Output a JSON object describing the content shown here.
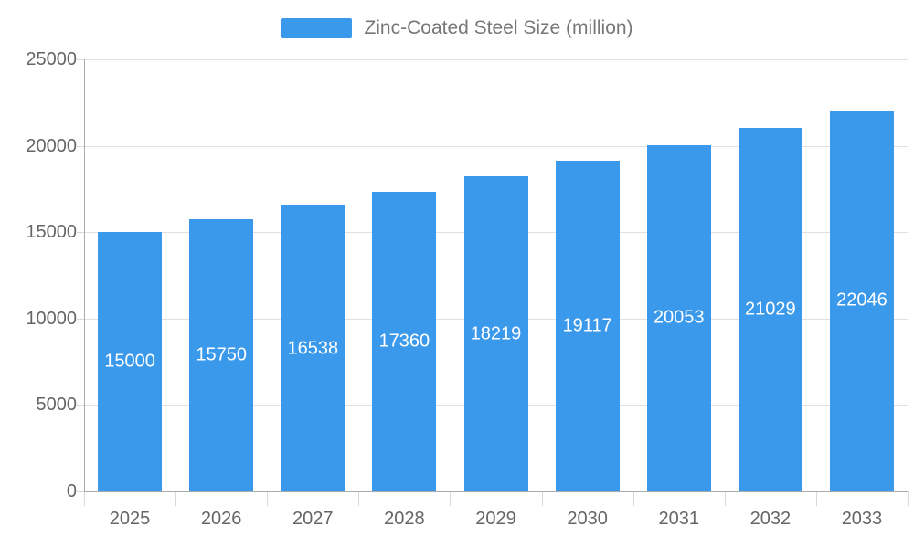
{
  "legend": {
    "label": "Zinc-Coated Steel Size (million)"
  },
  "chart_data": {
    "type": "bar",
    "title": "",
    "categories": [
      "2025",
      "2026",
      "2027",
      "2028",
      "2029",
      "2030",
      "2031",
      "2032",
      "2033"
    ],
    "series": [
      {
        "name": "Zinc-Coated Steel Size (million)",
        "values": [
          15000,
          15750,
          16538,
          17360,
          18219,
          19117,
          20053,
          21029,
          22046
        ]
      }
    ],
    "bar_value_labels": [
      "15000",
      "15750",
      "16538",
      "17360",
      "18219",
      "19117",
      "20053",
      "21029",
      "22046"
    ],
    "xlabel": "",
    "ylabel": "",
    "ylim": [
      0,
      25000
    ],
    "y_ticks": [
      0,
      5000,
      10000,
      15000,
      20000,
      25000
    ],
    "y_tick_labels": [
      "0",
      "5000",
      "10000",
      "15000",
      "20000",
      "25000"
    ],
    "grid": true,
    "legend_position": "top"
  },
  "colors": {
    "bar": "#3b99ec",
    "bar_label": "#ffffff",
    "grid_line": "#e0e0e0",
    "axis_line": "#aaaaaa",
    "tick": "#d9d9d9",
    "axis_text": "#666666",
    "legend_text": "#777777",
    "background": "#ffffff"
  }
}
